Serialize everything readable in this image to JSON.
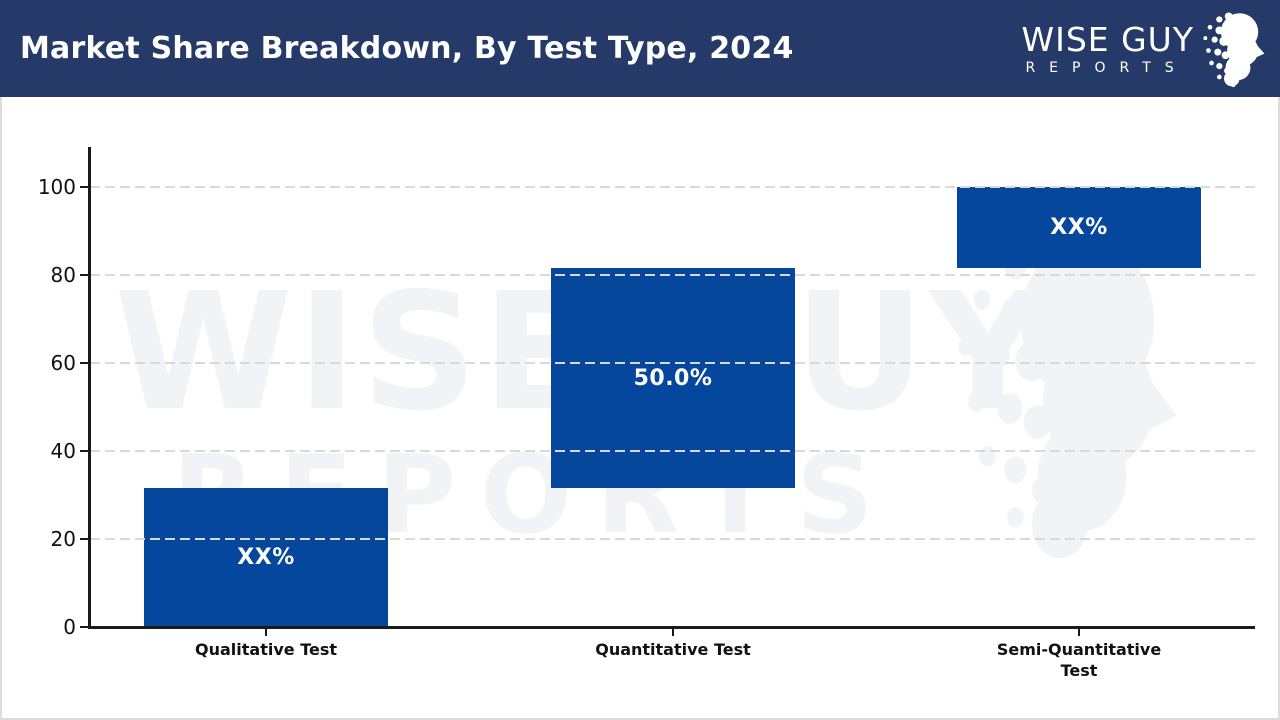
{
  "header": {
    "title": "Market Share Breakdown, By Test Type, 2024",
    "logo": {
      "name": "WISE GUY",
      "subtitle": "REPORTS"
    }
  },
  "watermark": {
    "name": "WISE GUY",
    "subtitle": "REPORTS"
  },
  "colors": {
    "header_bg": "#253a68",
    "bar": "#04479c",
    "bar_label": "#ffffff",
    "grid": "#d9d9d9",
    "axis": "#1a1a1a",
    "watermark": "#f2f3f6",
    "border": "#dcdcdc"
  },
  "chart_data": {
    "type": "bar",
    "subtype": "waterfall",
    "title": "Market Share Breakdown, By Test Type, 2024",
    "categories": [
      "Qualitative Test",
      "Quantitative Test",
      "Semi-Quantitative Test"
    ],
    "bars": [
      {
        "category": "Qualitative Test",
        "start": 0,
        "end": 31.5,
        "height": 31.5,
        "label": "XX%"
      },
      {
        "category": "Quantitative Test",
        "start": 31.5,
        "end": 81.5,
        "height": 50.0,
        "label": "50.0%"
      },
      {
        "category": "Semi-Quantitative Test",
        "start": 81.5,
        "end": 100,
        "height": 18.5,
        "label": "XX%"
      }
    ],
    "yticks": [
      0,
      20,
      40,
      60,
      80,
      100
    ],
    "ylim": [
      0,
      100
    ],
    "xlabel": "",
    "ylabel": "",
    "grid": "horizontal-dashed",
    "legend": null,
    "bar_color": "#04479c"
  }
}
